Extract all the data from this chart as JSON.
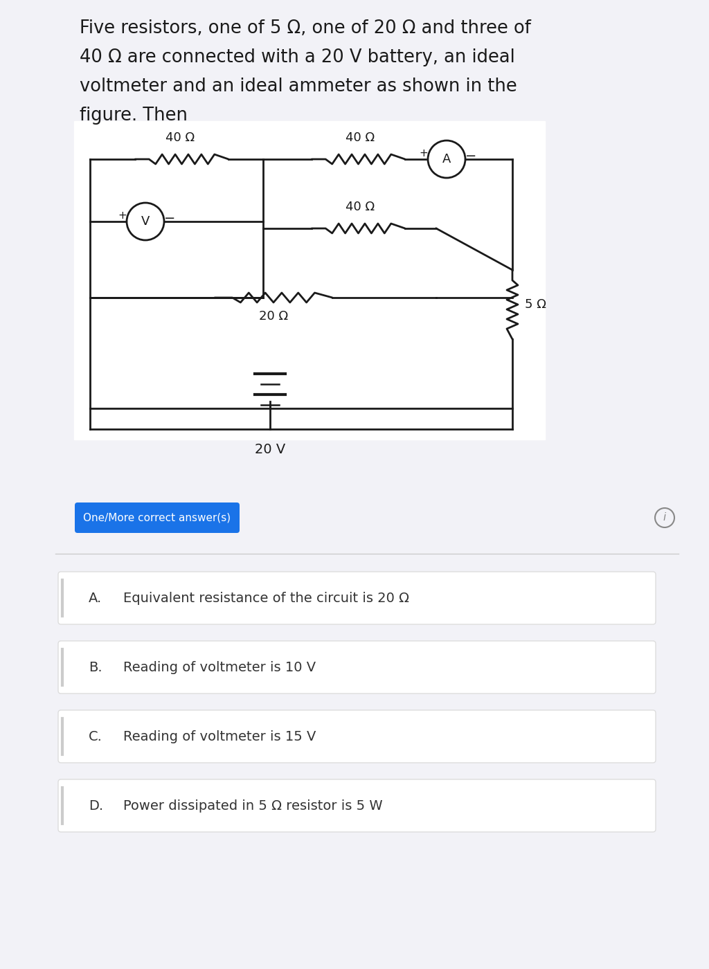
{
  "title_line1": "Five resistors, one of 5 Ω, one of 20 Ω and three of",
  "title_line2": "40 Ω are connected with a 20 V battery, an ideal",
  "title_line3": "voltmeter and an ideal ammeter as shown in the",
  "title_line4": "figure. Then",
  "background_color": "#f2f2f7",
  "circuit_bg": "#ffffff",
  "answer_options": [
    {
      "label": "A.",
      "text": "Equivalent resistance of the circuit is 20 Ω"
    },
    {
      "label": "B.",
      "text": "Reading of voltmeter is 10 V"
    },
    {
      "label": "C.",
      "text": "Reading of voltmeter is 15 V"
    },
    {
      "label": "D.",
      "text": "Power dissipated in 5 Ω resistor is 5 W"
    }
  ],
  "button_text": "One/More correct answer(s)",
  "button_color": "#1a73e8",
  "button_text_color": "#ffffff",
  "wire_color": "#1a1a1a",
  "text_color": "#1a1a1a"
}
